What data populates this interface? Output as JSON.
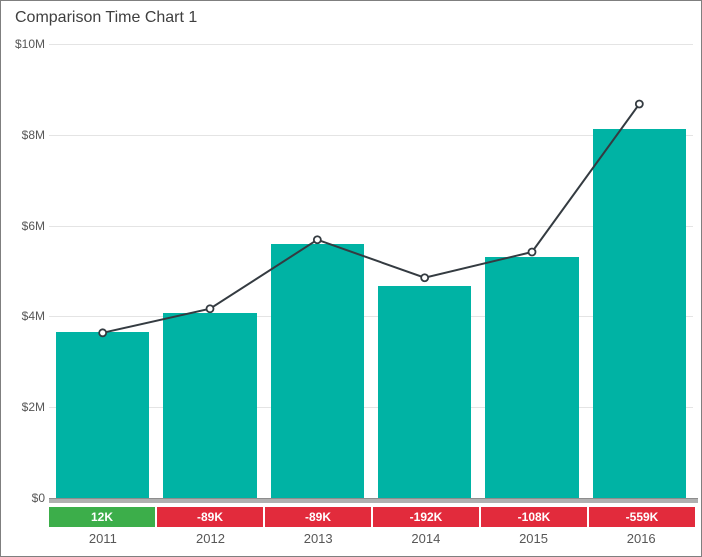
{
  "title": "Comparison Time Chart 1",
  "chart_data": {
    "type": "bar",
    "subtype": "bar-line-combo",
    "title": "Comparison Time Chart 1",
    "categories": [
      "2011",
      "2012",
      "2013",
      "2014",
      "2015",
      "2016"
    ],
    "series": [
      {
        "name": "bars",
        "type": "bar",
        "values": [
          3.65,
          4.08,
          5.6,
          4.66,
          5.31,
          8.12
        ]
      },
      {
        "name": "line",
        "type": "line",
        "values": [
          3.638,
          4.169,
          5.689,
          4.852,
          5.418,
          8.679
        ]
      }
    ],
    "value_unit": "$M",
    "deltas": [
      "12K",
      "-89K",
      "-89K",
      "-192K",
      "-108K",
      "-559K"
    ],
    "yticks": [
      "$0",
      "$2M",
      "$4M",
      "$6M",
      "$8M",
      "$10M"
    ],
    "ytick_values": [
      0,
      2,
      4,
      6,
      8,
      10
    ],
    "ylim": [
      0,
      10
    ],
    "grid": "horizontal",
    "legend": "none"
  },
  "colors": {
    "bar": "#00b3a4",
    "line": "#343b41",
    "marker_fill": "#ffffff",
    "positive_badge": "#3cae4a",
    "negative_badge": "#e22b3c",
    "badge_text": "#ffffff",
    "grid": "#e4e4e4",
    "axis_band": "#b0b0b0",
    "tick_text": "#575757",
    "title_text": "#3f3f3f"
  }
}
